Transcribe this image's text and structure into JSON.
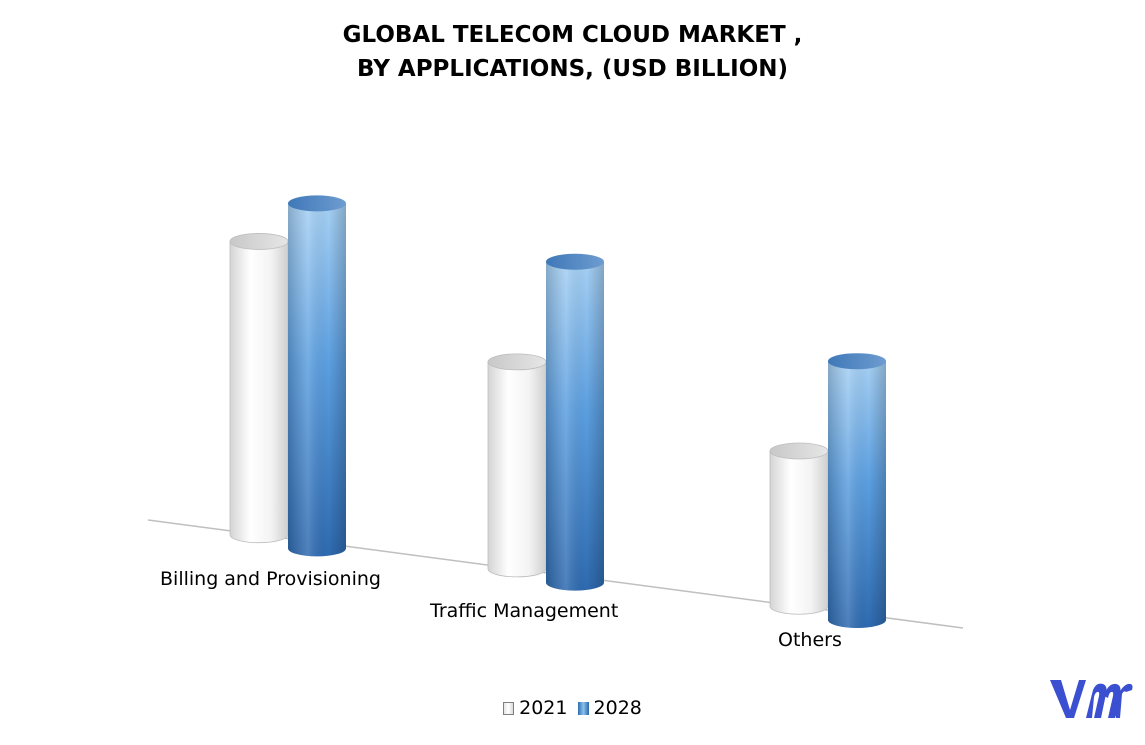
{
  "chart_data": {
    "type": "bar",
    "style": "3d-cylinder",
    "title_lines": [
      "GLOBAL TELECOM CLOUD MARKET ,",
      "BY APPLICATIONS, (USD BILLION)"
    ],
    "categories": [
      "Billing and Provisioning",
      "Traffic Management",
      "Others"
    ],
    "series": [
      {
        "name": "2021",
        "values": [
          8.5,
          6.0,
          4.5
        ],
        "color": "#f2f2f2"
      },
      {
        "name": "2028",
        "values": [
          10.0,
          9.3,
          7.5
        ],
        "color": "#4a8fd4"
      }
    ],
    "ylim": [
      0,
      11
    ],
    "grid": false,
    "legend_position": "bottom"
  },
  "logo": {
    "name": "vmr-logo",
    "color": "#3b4fd1"
  }
}
